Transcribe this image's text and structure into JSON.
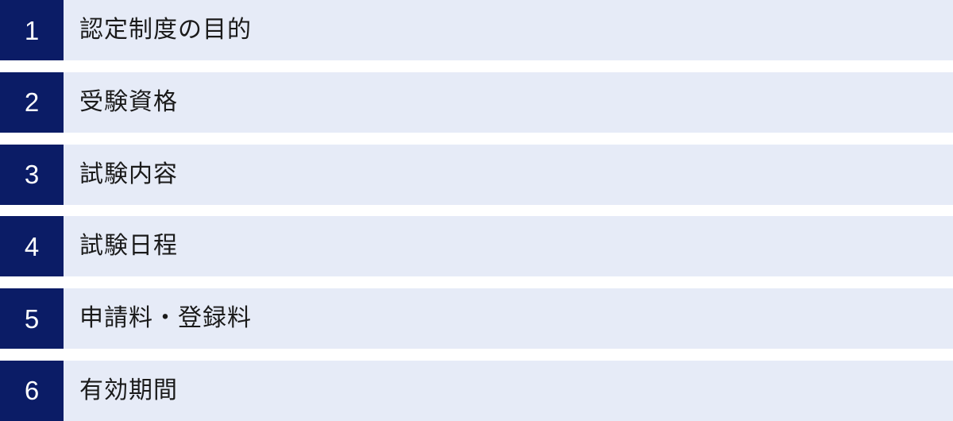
{
  "toc": {
    "items": [
      {
        "number": "1",
        "label": "認定制度の目的"
      },
      {
        "number": "2",
        "label": "受験資格"
      },
      {
        "number": "3",
        "label": "試験内容"
      },
      {
        "number": "4",
        "label": "試験日程"
      },
      {
        "number": "5",
        "label": "申請料・登録料"
      },
      {
        "number": "6",
        "label": "有効期間"
      }
    ],
    "colors": {
      "number_bg": "#0b1c66",
      "row_bg": "#e6ebf7",
      "label_text": "#1a1a1a",
      "number_text": "#ffffff",
      "page_bg": "#ffffff"
    }
  }
}
